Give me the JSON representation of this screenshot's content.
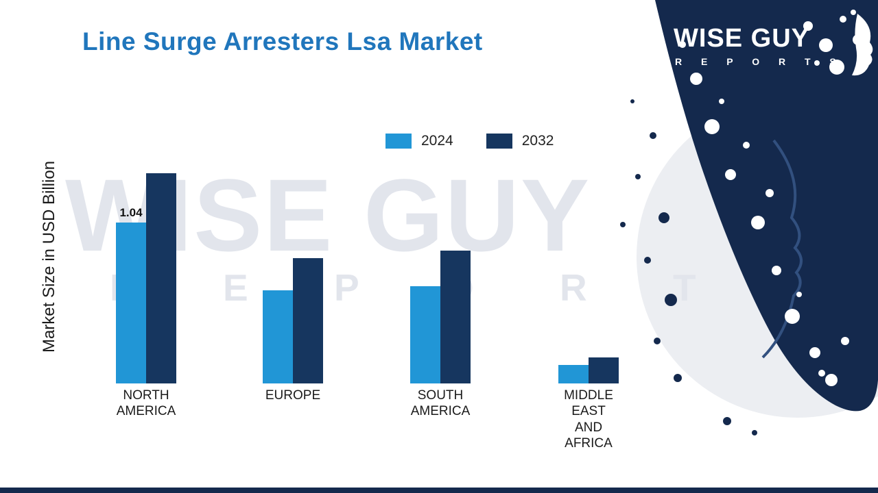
{
  "title": "Line Surge Arresters Lsa Market",
  "logo": {
    "name_line": "WISE GUY",
    "sub_line": "R E P O R T S"
  },
  "watermark": {
    "name_line": "WISE GUY",
    "sub_line": "R E P O R T S"
  },
  "colors": {
    "title_blue": "#2076bc",
    "bar_2024": "#2196d6",
    "bar_2032": "#16365f",
    "corner_navy": "#14294d",
    "pale_circle": "#eceef2",
    "watermark": "#e2e5ec"
  },
  "chart_data": {
    "type": "bar",
    "title": "Line Surge Arresters Lsa Market",
    "xlabel": "",
    "ylabel": "Market Size in USD Billion",
    "categories": [
      "NORTH AMERICA",
      "EUROPE",
      "SOUTH AMERICA",
      "MIDDLE EAST AND AFRICA"
    ],
    "category_lines": [
      [
        "NORTH",
        "AMERICA"
      ],
      [
        "EUROPE"
      ],
      [
        "SOUTH",
        "AMERICA"
      ],
      [
        "MIDDLE",
        "EAST",
        "AND",
        "AFRICA"
      ]
    ],
    "series": [
      {
        "name": "2024",
        "color": "#2196d6",
        "values": [
          1.04,
          0.6,
          0.63,
          0.12
        ]
      },
      {
        "name": "2032",
        "color": "#16365f",
        "values": [
          1.36,
          0.81,
          0.86,
          0.17
        ]
      }
    ],
    "data_labels": [
      {
        "series": "2024",
        "category": "NORTH AMERICA",
        "text": "1.04"
      }
    ],
    "ylim": [
      0,
      1.5
    ],
    "grid": false,
    "legend_position": "top-center"
  }
}
